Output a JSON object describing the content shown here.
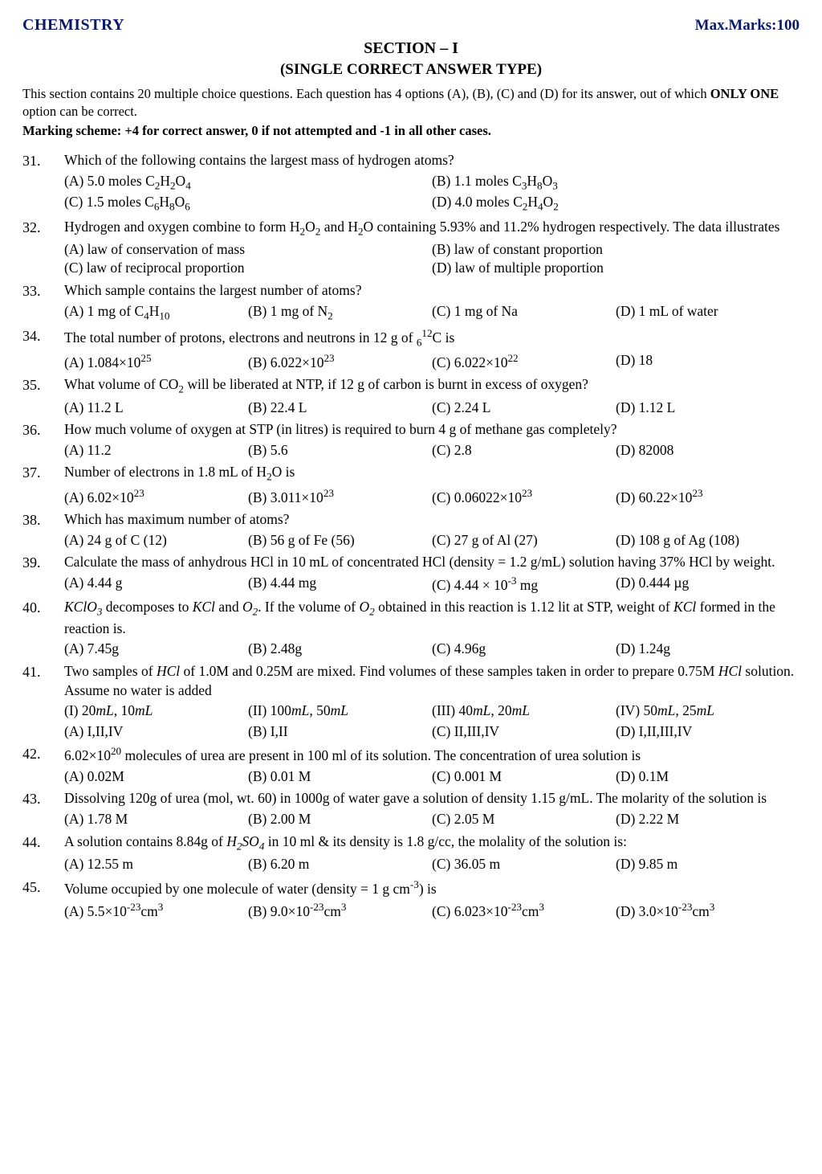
{
  "header": {
    "subject": "CHEMISTRY",
    "marks": "Max.Marks:100",
    "section": "SECTION – I",
    "type": "(SINGLE CORRECT ANSWER TYPE)",
    "intro_html": "This section contains 20 multiple choice questions. Each question has 4 options (A), (B), (C) and (D) for its answer, out of which <b>ONLY ONE</b> option can be correct.",
    "scheme": "Marking scheme: +4 for correct answer, 0 if not attempted and -1 in all other cases."
  },
  "questions": [
    {
      "n": "31.",
      "text": "Which of the following contains the largest mass of hydrogen atoms?",
      "cols": 2,
      "opts": [
        "(A) 5.0 moles C<sub>2</sub>H<sub>2</sub>O<sub>4</sub>",
        "(B) 1.1 moles C<sub>3</sub>H<sub>8</sub>O<sub>3</sub>",
        "(C) 1.5 moles C<sub>6</sub>H<sub>8</sub>O<sub>6</sub>",
        "(D) 4.0 moles C<sub>2</sub>H<sub>4</sub>O<sub>2</sub>"
      ]
    },
    {
      "n": "32.",
      "text": "Hydrogen and oxygen combine to form H<sub>2</sub>O<sub>2</sub> and H<sub>2</sub>O containing 5.93% and 11.2% hydrogen respectively. The data illustrates",
      "cols": 2,
      "opts": [
        "(A) law of conservation of mass",
        "(B) law of constant proportion",
        "(C) law of reciprocal proportion",
        "(D) law of multiple proportion"
      ]
    },
    {
      "n": "33.",
      "text": "Which sample contains the largest number of atoms?",
      "cols": 4,
      "opts": [
        "(A) 1 mg of C<sub>4</sub>H<sub>10</sub>",
        "(B) 1 mg of N<sub>2</sub>",
        "(C) 1 mg of Na",
        "(D) 1 mL of water"
      ]
    },
    {
      "n": "34.",
      "text": "The total number of protons, electrons and neutrons in 12 g of <sub>6</sub><sup>12</sup>C is",
      "cols": 4,
      "opts": [
        "(A) 1.084×10<sup>25</sup>",
        "(B) 6.022×10<sup>23</sup>",
        "(C) 6.022×10<sup>22</sup>",
        "(D) 18"
      ]
    },
    {
      "n": "35.",
      "text": "What volume of CO<sub>2</sub> will be liberated at NTP, if 12 g of carbon is burnt in excess of oxygen?",
      "cols": 4,
      "opts": [
        "(A) 11.2 L",
        "(B) 22.4 L",
        "(C) 2.24 L",
        "(D) 1.12 L"
      ]
    },
    {
      "n": "36.",
      "text": "How much volume of oxygen at STP (in litres) is required to burn 4 g of methane gas completely?",
      "cols": 4,
      "opts": [
        "(A) 11.2",
        "(B) 5.6",
        "(C) 2.8",
        "(D) 82008"
      ]
    },
    {
      "n": "37.",
      "text": "Number of electrons in 1.8 mL of H<sub>2</sub>O is",
      "cols": 4,
      "opts": [
        "(A) 6.02×10<sup>23</sup>",
        "(B) 3.011×10<sup>23</sup>",
        "(C) 0.06022×10<sup>23</sup>",
        "(D) 60.22×10<sup>23</sup>"
      ]
    },
    {
      "n": "38.",
      "text": "Which has maximum number of atoms?",
      "cols": 4,
      "opts": [
        "(A) 24 g of C (12)",
        "(B) 56 g of Fe (56)",
        "(C) 27 g of Al (27)",
        "(D) 108 g of Ag (108)"
      ]
    },
    {
      "n": "39.",
      "text": "Calculate the mass of anhydrous HCl in 10 mL of concentrated HCl (density = 1.2 g/mL) solution having 37% HCl by weight.",
      "cols": 4,
      "opts": [
        "(A) 4.44 g",
        "(B) 4.44 mg",
        "(C) 4.44 × 10<sup>-3</sup> mg",
        "(D) 0.444 µg"
      ]
    },
    {
      "n": "40.",
      "text": "<i>KClO<sub>3</sub></i> decomposes to <i>KCl</i> and <i>O<sub>2</sub></i>. If the volume of <i>O<sub>2</sub></i> obtained in this reaction is 1.12 lit at STP, weight of <i>KCl</i> formed in the reaction is.",
      "cols": 4,
      "opts": [
        "(A) 7.45g",
        "(B) 2.48g",
        "(C) 4.96g",
        "(D) 1.24g"
      ]
    },
    {
      "n": "41.",
      "text": "Two samples of <i>HCl</i> of 1.0M and 0.25M are mixed. Find volumes of these samples taken in order to prepare 0.75M <i>HCl</i> solution. Assume no water is added",
      "extra_rows": [
        [
          "(I) 20<i>mL</i>, 10<i>mL</i>",
          "(II) 100<i>mL</i>, 50<i>mL</i>",
          "(III) 40<i>mL</i>, 20<i>mL</i>",
          "(IV) 50<i>mL</i>, 25<i>mL</i>"
        ]
      ],
      "cols": 4,
      "opts": [
        "(A) I,II,IV",
        "(B) I,II",
        "(C) II,III,IV",
        "(D) I,II,III,IV"
      ]
    },
    {
      "n": "42.",
      "text": "6.02×10<sup>20</sup> molecules of urea are present in 100 ml of its solution. The concentration of urea solution is",
      "cols": 4,
      "opts": [
        "(A) 0.02M",
        "(B) 0.01 M",
        "(C) 0.001 M",
        "(D) 0.1M"
      ]
    },
    {
      "n": "43.",
      "text": "Dissolving 120g of urea (mol, wt. 60) in 1000g of water gave a solution of density 1.15 g/mL. The molarity of the solution is",
      "cols": 4,
      "opts": [
        "(A) 1.78 M",
        "(B) 2.00 M",
        "(C) 2.05 M",
        "(D) 2.22 M"
      ]
    },
    {
      "n": "44.",
      "text": "A solution contains 8.84g of <i>H<sub>2</sub>SO<sub>4</sub></i> in 10 ml & its density is 1.8 g/cc, the molality of the solution is:",
      "cols": 4,
      "opts": [
        "(A) 12.55 m",
        "(B) 6.20 m",
        "(C) 36.05 m",
        "(D) 9.85 m"
      ]
    },
    {
      "n": "45.",
      "text": "Volume occupied by one molecule of water (density = 1 g cm<sup>-3</sup>) is",
      "cols": 4,
      "opts": [
        "(A) 5.5×10<sup>-23</sup>cm<sup>3</sup>",
        "(B) 9.0×10<sup>-23</sup>cm<sup>3</sup>",
        "(C) 6.023×10<sup>-23</sup>cm<sup>3</sup>",
        "(D) 3.0×10<sup>-23</sup>cm<sup>3</sup>"
      ]
    }
  ]
}
